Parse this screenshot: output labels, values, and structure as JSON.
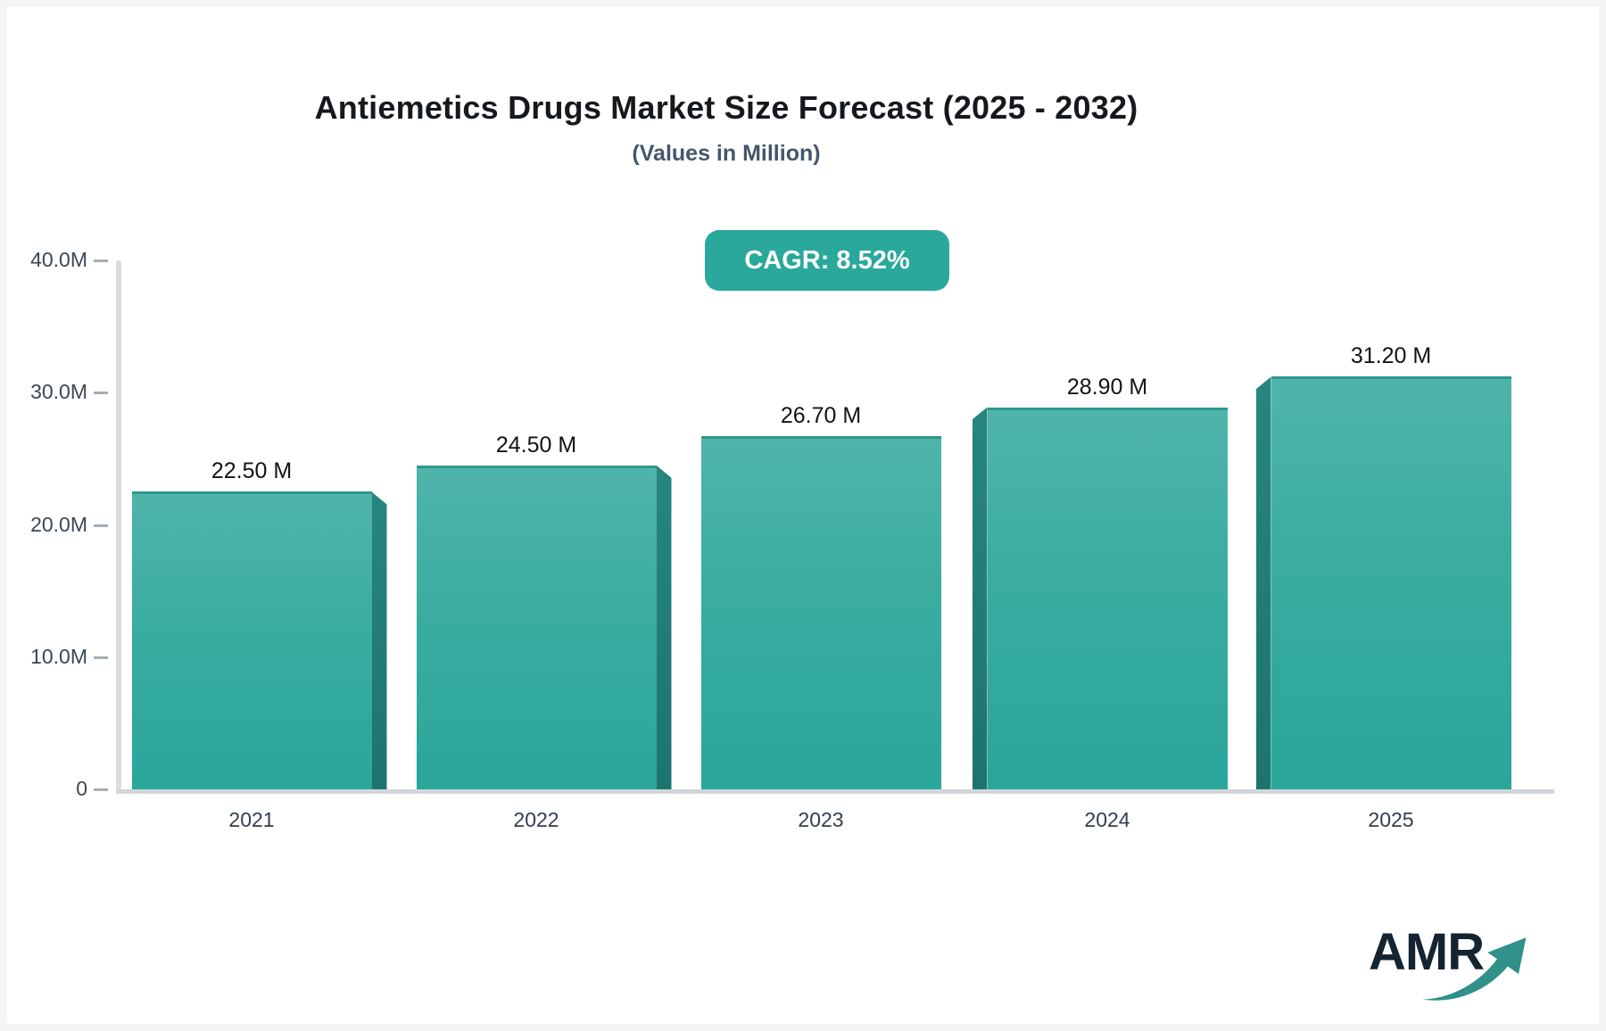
{
  "page": {
    "background": "#f4f5f7",
    "card_background": "#ffffff"
  },
  "header": {
    "title": "Antiemetics Drugs Market Size Forecast (2025 - 2032)",
    "subtitle": "(Values in Million)"
  },
  "badge": {
    "label": "CAGR: 8.52%",
    "color": "#2aa89c"
  },
  "chart_data": {
    "type": "bar",
    "title": "Antiemetics Drugs Market Size Forecast (2025 - 2032)",
    "subtitle": "(Values in Million)",
    "categories": [
      "2021",
      "2022",
      "2023",
      "2024",
      "2025"
    ],
    "values": [
      22.5,
      24.5,
      26.7,
      28.9,
      31.2
    ],
    "value_labels": [
      "22.50 M",
      "24.50 M",
      "26.70 M",
      "28.90 M",
      "31.20 M"
    ],
    "unit": "Million",
    "cagr": "8.52%",
    "xlabel": "",
    "ylabel": "",
    "ylim": [
      0,
      40
    ],
    "yticks": [
      {
        "label": "40.0M",
        "value": 40
      },
      {
        "label": "30.0M",
        "value": 30
      },
      {
        "label": "20.0M",
        "value": 20
      },
      {
        "label": "10.0M",
        "value": 10
      },
      {
        "label": "0",
        "value": 0
      }
    ],
    "grid": false,
    "legend": "none",
    "bar_color_top": "#4fb5ab",
    "bar_color_bottom": "#2aa69a",
    "bar_side_color": "#1d746e",
    "perspective_sides": [
      "right",
      "right",
      "none",
      "left",
      "left"
    ]
  },
  "logo": {
    "text": "AMR",
    "text_color": "#152430",
    "arrow_color": "#2f9189",
    "arrow_icon": "growth-arrow"
  }
}
